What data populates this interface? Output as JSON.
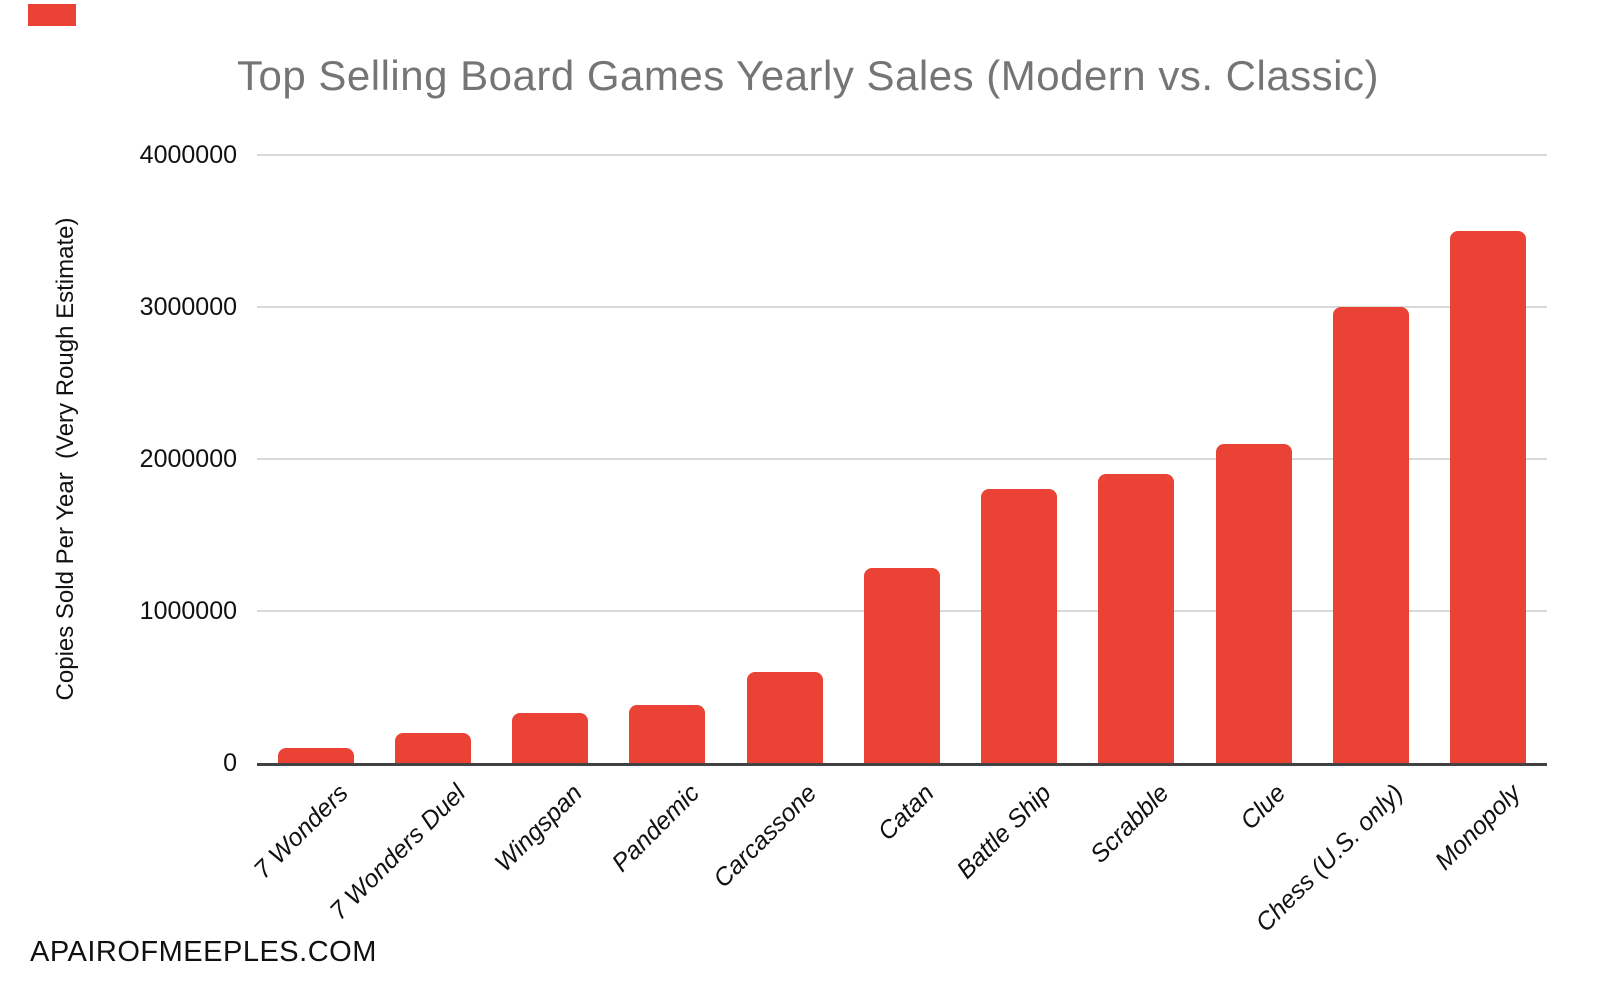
{
  "page": {
    "watermark": "APAIROFMEEPLES.COM"
  },
  "chart_data": {
    "type": "bar",
    "title": "Top Selling Board Games Yearly Sales (Modern vs. Classic)",
    "xlabel": "",
    "ylabel": "Copies Sold Per Year  (Very Rough Estimate)",
    "categories": [
      "7 Wonders",
      "7 Wonders Duel",
      "Wingspan",
      "Pandemic",
      "Carcassone",
      "Catan",
      "Battle Ship",
      "Scrabble",
      "Clue",
      "Chess (U.S. only)",
      "Monopoly"
    ],
    "values": [
      100000,
      200000,
      330000,
      380000,
      600000,
      1280000,
      1800000,
      1900000,
      2100000,
      3000000,
      3500000
    ],
    "ylim": [
      0,
      4000000
    ],
    "yticks": [
      0,
      1000000,
      2000000,
      3000000,
      4000000
    ],
    "grid": true,
    "legend": "none",
    "bar_color": "#EA4335",
    "gridline_color": "#d9d9d9",
    "axis_color": "#424242",
    "title_color": "#757575",
    "text_color": "#111111"
  }
}
